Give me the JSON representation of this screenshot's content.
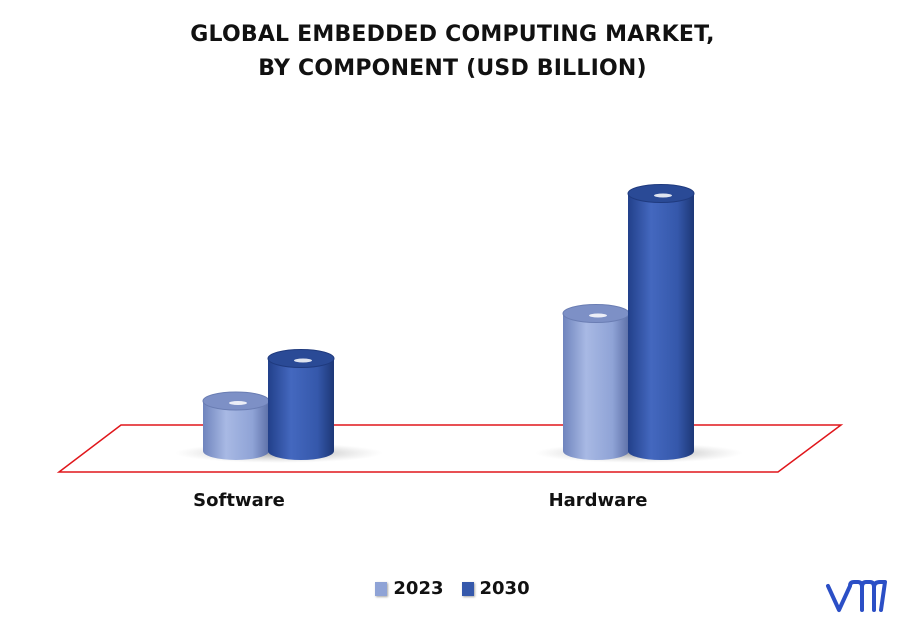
{
  "chart_data": {
    "type": "bar",
    "title_lines": [
      "GLOBAL EMBEDDED COMPUTING MARKET,",
      "BY COMPONENT (USD BILLION)"
    ],
    "categories": [
      "Software",
      "Hardware"
    ],
    "series": [
      {
        "name": "2023",
        "color": "#8fa3d6",
        "values": [
          20,
          55
        ]
      },
      {
        "name": "2030",
        "color": "#3558ab",
        "values": [
          37,
          103
        ]
      }
    ],
    "xlabel": "",
    "ylabel": "",
    "ylim": [
      0,
      110
    ],
    "grid": false,
    "legend": "bottom-center"
  },
  "branding": {
    "logo": "vmr-logo",
    "logo_color": "#2b4fc6"
  }
}
